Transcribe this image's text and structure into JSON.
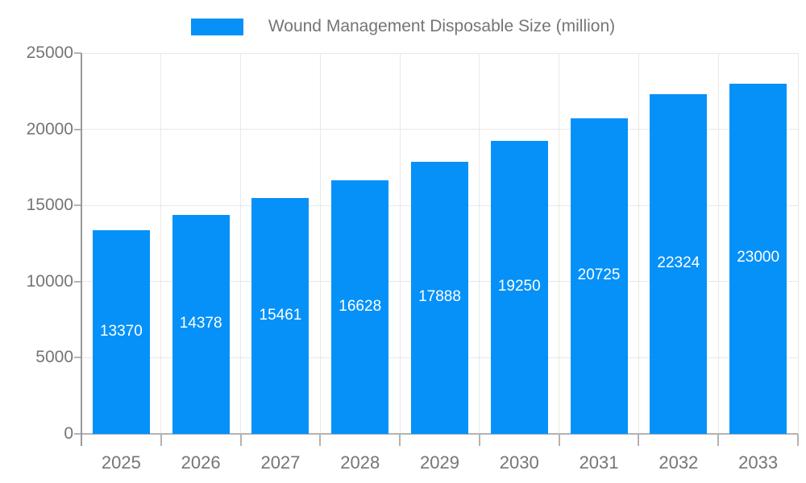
{
  "legend": {
    "label": "Wound Management Disposable Size (million)"
  },
  "colors": {
    "bar": "#0591f8",
    "bar_label": "#ffffff",
    "grid": "#e8e8e8",
    "axis": "#999999",
    "baseline": "#b3b3b3",
    "text": "#757575",
    "background": "#ffffff"
  },
  "chart_data": {
    "type": "bar",
    "title": "Wound Management Disposable Size (million)",
    "categories": [
      "2025",
      "2026",
      "2027",
      "2028",
      "2029",
      "2030",
      "2031",
      "2032",
      "2033"
    ],
    "values": [
      13370,
      14378,
      15461,
      16628,
      17888,
      19250,
      20725,
      22324,
      23000
    ],
    "xlabel": "",
    "ylabel": "",
    "ylim": [
      0,
      25000
    ],
    "yticks": [
      0,
      5000,
      10000,
      15000,
      20000,
      25000
    ],
    "grid": true,
    "legend_position": "top-center",
    "value_labels": "inside-middle"
  }
}
